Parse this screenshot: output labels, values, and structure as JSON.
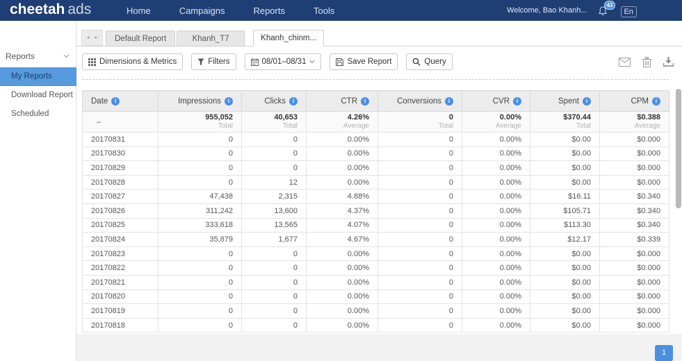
{
  "navbar": {
    "brand_bold": "cheetah",
    "brand_light": "ads",
    "items": [
      "Home",
      "Campaigns",
      "Reports",
      "Tools"
    ],
    "welcome": "Welcome,  Bao Khanh...",
    "notification_count": "43",
    "language": "En"
  },
  "sidebar": {
    "section": "Reports",
    "items": [
      {
        "label": "My Reports",
        "active": true
      },
      {
        "label": "Download Report",
        "active": false
      },
      {
        "label": "Scheduled",
        "active": false
      }
    ]
  },
  "tabs": [
    {
      "label": "Default Report",
      "active": false
    },
    {
      "label": "Khanh_T7",
      "active": false
    },
    {
      "label": "Khanh_chinm...",
      "active": true
    }
  ],
  "toolbar": {
    "dimensions_metrics": "Dimensions & Metrics",
    "filters": "Filters",
    "date_range": "08/01–08/31",
    "save_report": "Save Report",
    "query": "Query"
  },
  "table": {
    "columns": [
      "Date",
      "Impressions",
      "Clicks",
      "CTR",
      "Conversions",
      "CVR",
      "Spent",
      "CPM"
    ],
    "summary": {
      "date": "–",
      "values": [
        "955,052",
        "40,653",
        "4.26%",
        "0",
        "0.00%",
        "$370.44",
        "$0.388"
      ],
      "labels": [
        "Total",
        "Total",
        "Average",
        "Total",
        "Average",
        "Total",
        "Average"
      ]
    },
    "rows": [
      [
        "20170831",
        "0",
        "0",
        "0.00%",
        "0",
        "0.00%",
        "$0.00",
        "$0.000"
      ],
      [
        "20170830",
        "0",
        "0",
        "0.00%",
        "0",
        "0.00%",
        "$0.00",
        "$0.000"
      ],
      [
        "20170829",
        "0",
        "0",
        "0.00%",
        "0",
        "0.00%",
        "$0.00",
        "$0.000"
      ],
      [
        "20170828",
        "0",
        "12",
        "0.00%",
        "0",
        "0.00%",
        "$0.00",
        "$0.000"
      ],
      [
        "20170827",
        "47,438",
        "2,315",
        "4.88%",
        "0",
        "0.00%",
        "$16.11",
        "$0.340"
      ],
      [
        "20170826",
        "311,242",
        "13,600",
        "4.37%",
        "0",
        "0.00%",
        "$105.71",
        "$0.340"
      ],
      [
        "20170825",
        "333,618",
        "13,565",
        "4.07%",
        "0",
        "0.00%",
        "$113.30",
        "$0.340"
      ],
      [
        "20170824",
        "35,879",
        "1,677",
        "4.67%",
        "0",
        "0.00%",
        "$12.17",
        "$0.339"
      ],
      [
        "20170823",
        "0",
        "0",
        "0.00%",
        "0",
        "0.00%",
        "$0.00",
        "$0.000"
      ],
      [
        "20170822",
        "0",
        "0",
        "0.00%",
        "0",
        "0.00%",
        "$0.00",
        "$0.000"
      ],
      [
        "20170821",
        "0",
        "0",
        "0.00%",
        "0",
        "0.00%",
        "$0.00",
        "$0.000"
      ],
      [
        "20170820",
        "0",
        "0",
        "0.00%",
        "0",
        "0.00%",
        "$0.00",
        "$0.000"
      ],
      [
        "20170819",
        "0",
        "0",
        "0.00%",
        "0",
        "0.00%",
        "$0.00",
        "$0.000"
      ],
      [
        "20170818",
        "0",
        "0",
        "0.00%",
        "0",
        "0.00%",
        "$0.00",
        "$0.000"
      ]
    ]
  },
  "pagination": {
    "page": "1"
  },
  "colors": {
    "accent": "#4a90e2",
    "navbar": "#1f3e74",
    "sidebar_active_bg": "#579add"
  }
}
